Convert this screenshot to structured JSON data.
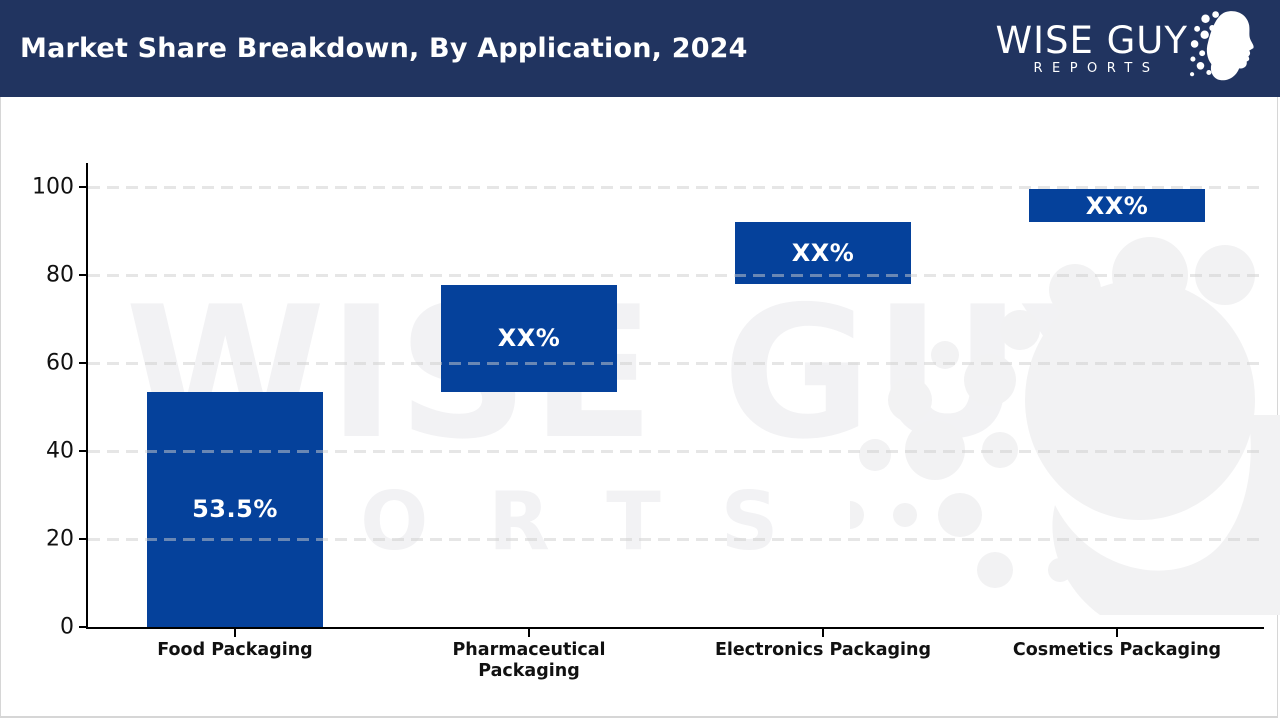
{
  "header": {
    "title": "Market Share Breakdown, By Application, 2024",
    "bg_color": "#213460",
    "logo": {
      "line1": "WISE GUY",
      "line2": "REPORTS"
    }
  },
  "watermark": {
    "line1": "WISE GUY",
    "line2": "PORTS"
  },
  "chart_data": {
    "type": "bar",
    "subtype": "waterfall",
    "title": "Market Share Breakdown, By Application, 2024",
    "categories": [
      "Food Packaging",
      "Pharmaceutical Packaging",
      "Electronics Packaging",
      "Cosmetics Packaging"
    ],
    "bars": [
      {
        "category": "Food Packaging",
        "label": "53.5%",
        "start": 0,
        "end": 53.5
      },
      {
        "category": "Pharmaceutical Packaging",
        "label": "XX%",
        "start": 53.5,
        "end": 77.7
      },
      {
        "category": "Electronics Packaging",
        "label": "XX%",
        "start": 78.0,
        "end": 92.0
      },
      {
        "category": "Cosmetics Packaging",
        "label": "XX%",
        "start": 92.0,
        "end": 99.5
      }
    ],
    "shown_values": [
      "53.5%",
      "XX%",
      "XX%",
      "XX%"
    ],
    "ylim": [
      0,
      100
    ],
    "yticks": [
      0,
      20,
      40,
      60,
      80,
      100
    ],
    "grid": {
      "axis": "y",
      "style": "dashed",
      "color": "#dedede"
    },
    "legend": "none",
    "bar_color": "#05419b",
    "axis_color": "#000000"
  }
}
